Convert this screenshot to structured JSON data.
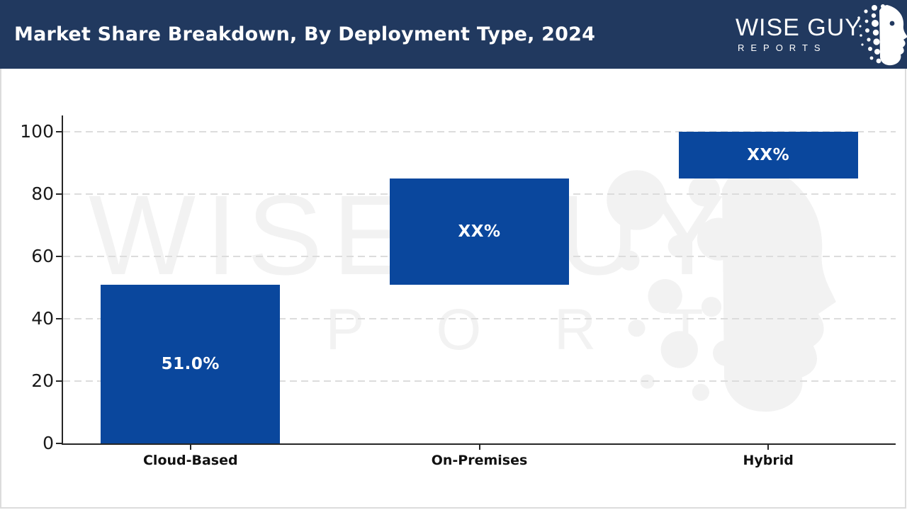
{
  "header": {
    "title": "Market Share Breakdown, By Deployment Type, 2024",
    "logo": {
      "wordmark": "WISE GUY",
      "subtext": "REPORTS"
    }
  },
  "watermark": {
    "wordmark": "WISE GUY",
    "subtext": "R E P O R T S"
  },
  "colors": {
    "header_bg": "#21395f",
    "title_text": "#ffffff",
    "bar": "#0a479d",
    "bar_label_text": "#ffffff",
    "gridline": "#dcdcdc",
    "axis": "#262626",
    "watermark": "#f2f2f2"
  },
  "chart_data": {
    "type": "bar",
    "variant": "stacked-waterfall",
    "title": "Market Share Breakdown, By Deployment Type, 2024",
    "categories": [
      "Cloud-Based",
      "On-Premises",
      "Hybrid"
    ],
    "series": [
      {
        "name": "Cloud-Based",
        "start": 0,
        "end": 51,
        "label": "51.0%"
      },
      {
        "name": "On-Premises",
        "start": 51,
        "end": 85,
        "label": "XX%"
      },
      {
        "name": "Hybrid",
        "start": 85,
        "end": 100,
        "label": "XX%"
      }
    ],
    "xlabel": "",
    "ylabel": "",
    "y_ticks": [
      0,
      20,
      40,
      60,
      80,
      100
    ],
    "ylim": [
      0,
      105.3
    ],
    "grid": "horizontal-dashed",
    "legend": "none",
    "bar_color": "#0a479d"
  }
}
